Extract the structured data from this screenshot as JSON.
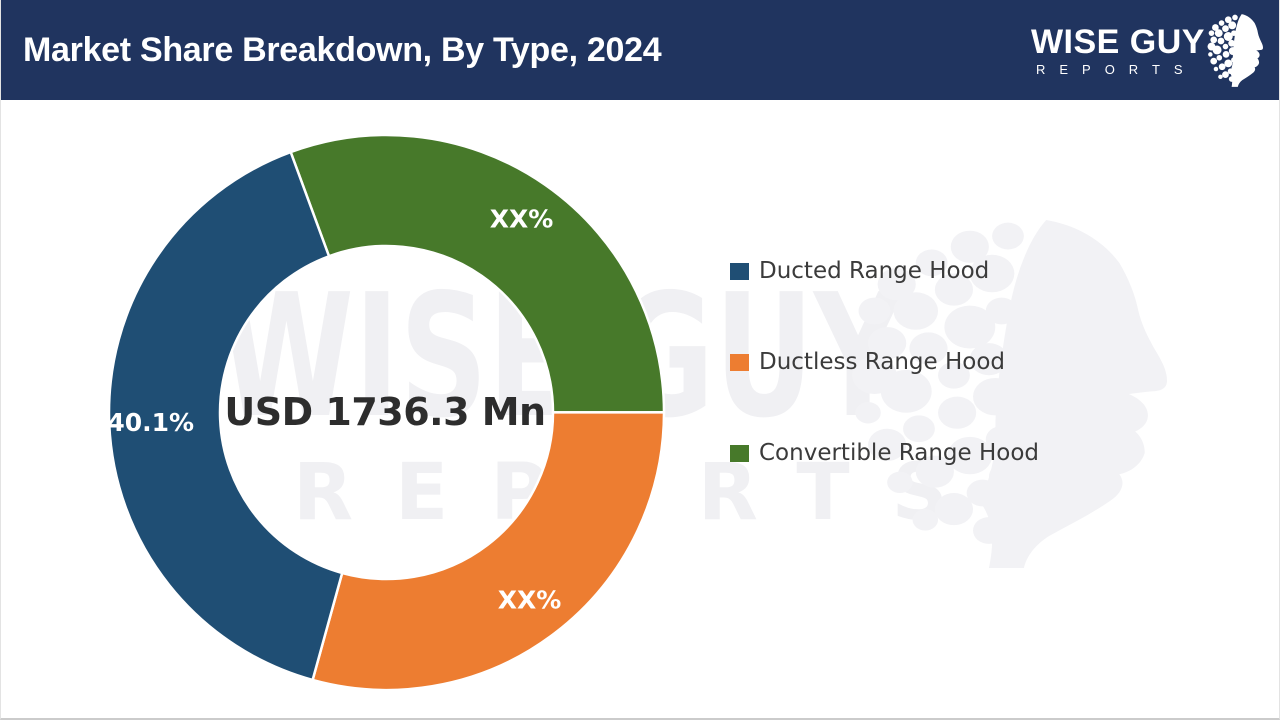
{
  "header": {
    "title": "Market Share Breakdown, By Type, 2024",
    "logo": {
      "line1": "WISE GUY",
      "line2": "REPORTS"
    }
  },
  "watermark": {
    "line1": "WISE GUY",
    "line2": "REPORTS"
  },
  "chart_data": {
    "type": "donut",
    "title": "Market Share Breakdown, By Type, 2024",
    "center_label": "USD 1736.3 Mn",
    "series": [
      {
        "name": "Ducted Range Hood",
        "value": 40.1,
        "label": "40.1%",
        "color": "#1F4E74"
      },
      {
        "name": "Ductless Range Hood",
        "value": 29.3,
        "label": "XX%",
        "color": "#ED7D31"
      },
      {
        "name": "Convertible Range Hood",
        "value": 30.6,
        "label": "XX%",
        "color": "#47792A"
      }
    ],
    "rotation_deg": -20.2,
    "draw_order": [
      2,
      1,
      0
    ],
    "legend_position": "right",
    "background": "#FFFFFF",
    "header_color": "#20345F"
  }
}
